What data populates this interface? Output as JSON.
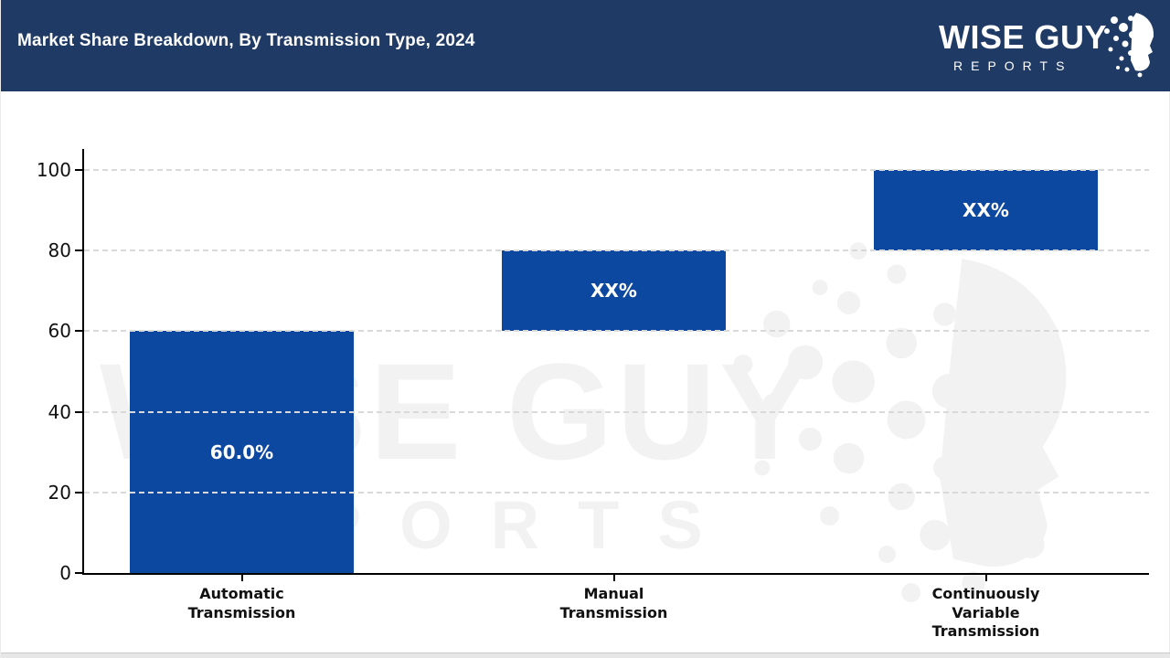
{
  "header": {
    "title": "Market Share Breakdown, By Transmission Type, 2024",
    "logo_line1": "WISE GUY",
    "logo_line2": "REPORTS"
  },
  "watermark": {
    "line1": "WISE GUY",
    "line2": "REPORTS"
  },
  "chart_data": {
    "type": "bar",
    "variant": "floating-waterfall-segments",
    "title": "Market Share Breakdown, By Transmission Type, 2024",
    "categories": [
      "Automatic Transmission",
      "Manual Transmission",
      "Continuously Variable Transmission"
    ],
    "category_label_lines": [
      [
        "Automatic",
        "Transmission"
      ],
      [
        "Manual",
        "Transmission"
      ],
      [
        "Continuously",
        "Variable",
        "Transmission"
      ]
    ],
    "series": [
      {
        "name": "Market share (%)",
        "segments": [
          {
            "category": "Automatic Transmission",
            "from": 0,
            "to": 60,
            "label": "60.0%"
          },
          {
            "category": "Manual Transmission",
            "from": 60,
            "to": 80,
            "label": "XX%"
          },
          {
            "category": "Continuously Variable Transmission",
            "from": 80,
            "to": 100,
            "label": "XX%"
          }
        ]
      }
    ],
    "yticks": [
      0,
      20,
      40,
      60,
      80,
      100
    ],
    "ylim": [
      0,
      105
    ],
    "xlabel": "",
    "ylabel": "",
    "grid": "horizontal-dashed",
    "legend": "none",
    "colors": {
      "bar": "#0c47a0",
      "grid": "#d9d9d9",
      "axis": "#000000",
      "bar_label_text": "#ffffff",
      "header_bg": "#1f3a64",
      "watermark": "#f2f2f2"
    }
  }
}
